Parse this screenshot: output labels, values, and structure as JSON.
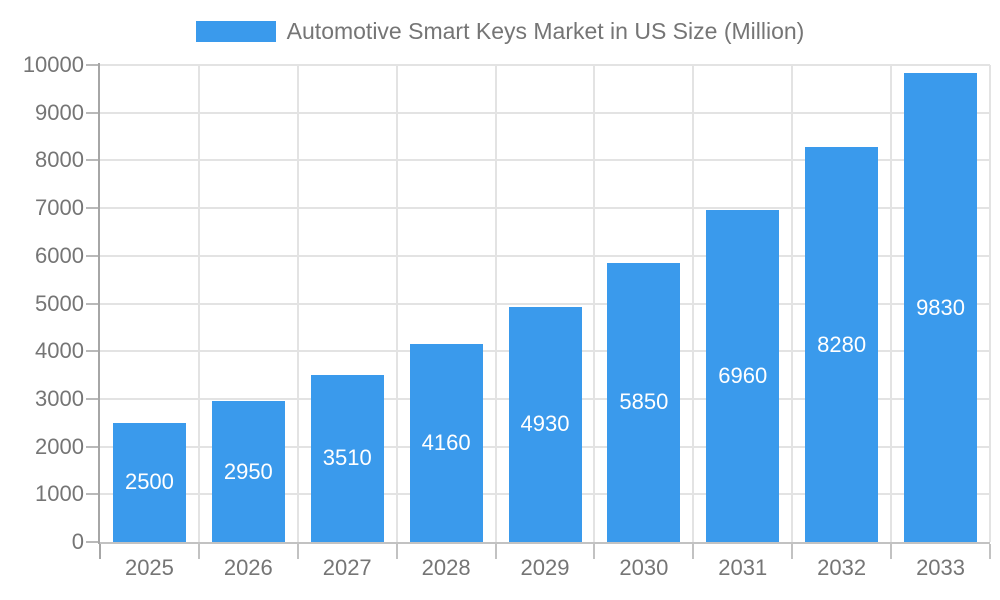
{
  "chart_data": {
    "type": "bar",
    "title": "Automotive Smart Keys Market in US Size (Million)",
    "legend": {
      "position": "top",
      "label": "Automotive Smart Keys Market in US Size (Million)"
    },
    "categories": [
      "2025",
      "2026",
      "2027",
      "2028",
      "2029",
      "2030",
      "2031",
      "2032",
      "2033"
    ],
    "series": [
      {
        "name": "Automotive Smart Keys Market in US Size (Million)",
        "values": [
          2500,
          2950,
          3510,
          4160,
          4930,
          5850,
          6960,
          8280,
          9830
        ]
      }
    ],
    "bar_value_labels": [
      "2500",
      "2950",
      "3510",
      "4160",
      "4930",
      "5850",
      "6960",
      "8280",
      "9830"
    ],
    "xlabel": "",
    "ylabel": "",
    "ylim": [
      0,
      10000
    ],
    "yticks": [
      0,
      1000,
      2000,
      3000,
      4000,
      5000,
      6000,
      7000,
      8000,
      9000,
      10000
    ],
    "grid": true,
    "legend_position": "top",
    "colors": {
      "bar": "#3A9AEC",
      "bar_label_text": "#FFFFFF",
      "axis_text": "#757575",
      "legend_text": "#757575",
      "gridline": "#E3E3E3",
      "y_axis_line": "#A6A6A6",
      "x_axis_line": "#C2C2C2",
      "tick": "#B9B9B9",
      "background": "#FFFFFF"
    }
  }
}
